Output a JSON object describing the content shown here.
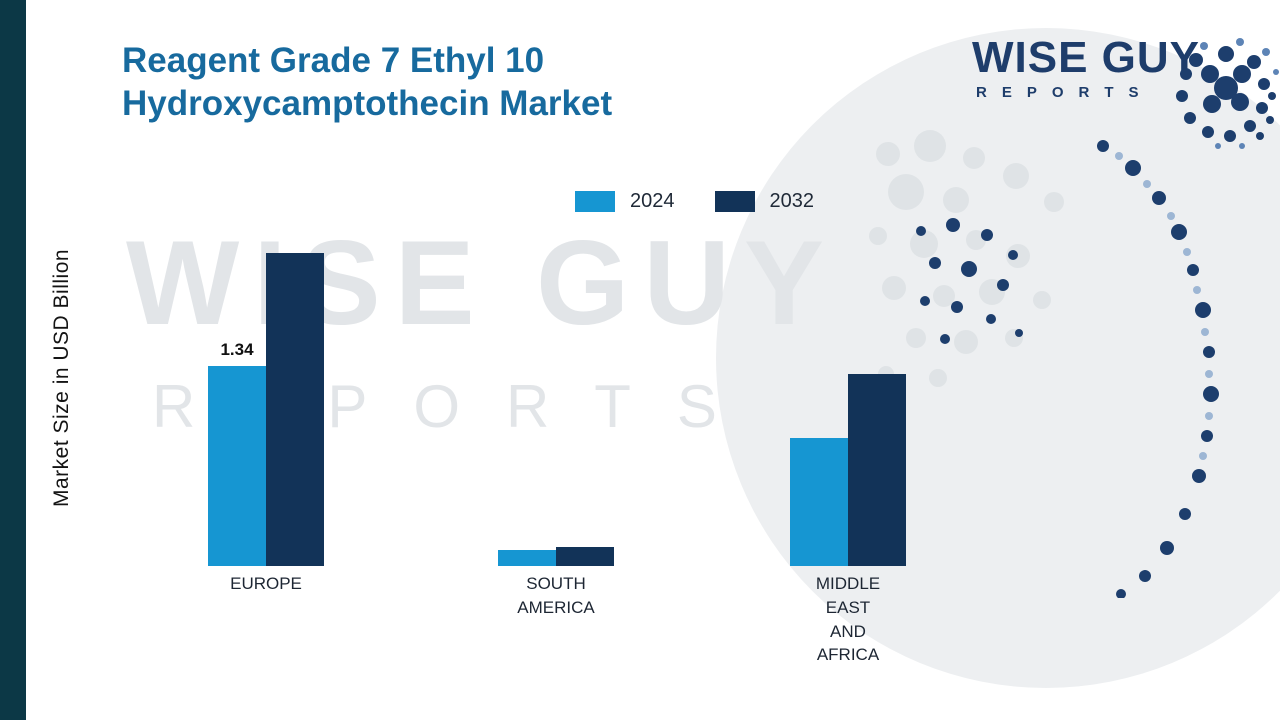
{
  "header": {
    "title": "Reagent Grade 7 Ethyl 10\nHydroxycamptothecin Market"
  },
  "logo": {
    "brand": "WISE GUY",
    "sub": "REPORTS"
  },
  "watermark": {
    "line1": "WISE GUY",
    "line2": "REPORTS"
  },
  "chart_data": {
    "type": "bar",
    "title": "Reagent Grade 7 Ethyl 10 Hydroxycamptothecin Market",
    "ylabel": "Market Size in USD Billion",
    "xlabel": "",
    "categories": [
      "EUROPE",
      "SOUTH\nAMERICA",
      "MIDDLE\nEAST\nAND\nAFRICA"
    ],
    "series": [
      {
        "name": "2024",
        "color": "#1696d2",
        "values": [
          1.34,
          0.11,
          0.86
        ]
      },
      {
        "name": "2032",
        "color": "#123358",
        "values": [
          2.1,
          0.13,
          1.29
        ]
      }
    ],
    "ylim": [
      0,
      2.4
    ],
    "grid": false,
    "legend_position": "top",
    "value_labels": [
      {
        "series_index": 0,
        "category_index": 0,
        "text": "1.34"
      }
    ]
  },
  "colors": {
    "left_bar": "#0c3846",
    "title_blue": "#176a9e",
    "logo_navy": "#1e3d6b",
    "series_2024": "#1696d2",
    "series_2032": "#123358",
    "watermark_gray": "#e2e5e8",
    "background_circle": "#edeff1"
  }
}
